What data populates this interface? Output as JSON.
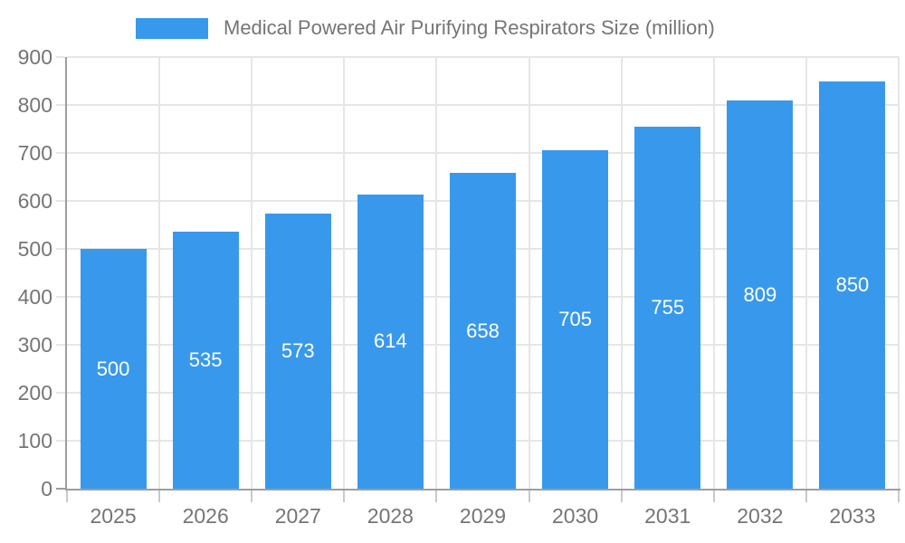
{
  "legend": {
    "label": "Medical Powered Air Purifying Respirators Size (million)"
  },
  "chart_data": {
    "type": "bar",
    "title": "Medical Powered Air Purifying Respirators Size (million)",
    "categories": [
      "2025",
      "2026",
      "2027",
      "2028",
      "2029",
      "2030",
      "2031",
      "2032",
      "2033"
    ],
    "values": [
      500,
      535,
      573,
      614,
      658,
      705,
      755,
      809,
      850
    ],
    "xlabel": "",
    "ylabel": "",
    "ylim": [
      0,
      900
    ],
    "yticks": [
      0,
      100,
      200,
      300,
      400,
      500,
      600,
      700,
      800,
      900
    ],
    "grid": true,
    "legend_position": "top",
    "colors": {
      "bar": "#3899ec",
      "bar_value_label": "#ffffff",
      "axis_line": "#9e9e9e",
      "grid_line": "#e6e6e6",
      "tick_x": "#c9c9c9",
      "text": "#757575"
    }
  }
}
